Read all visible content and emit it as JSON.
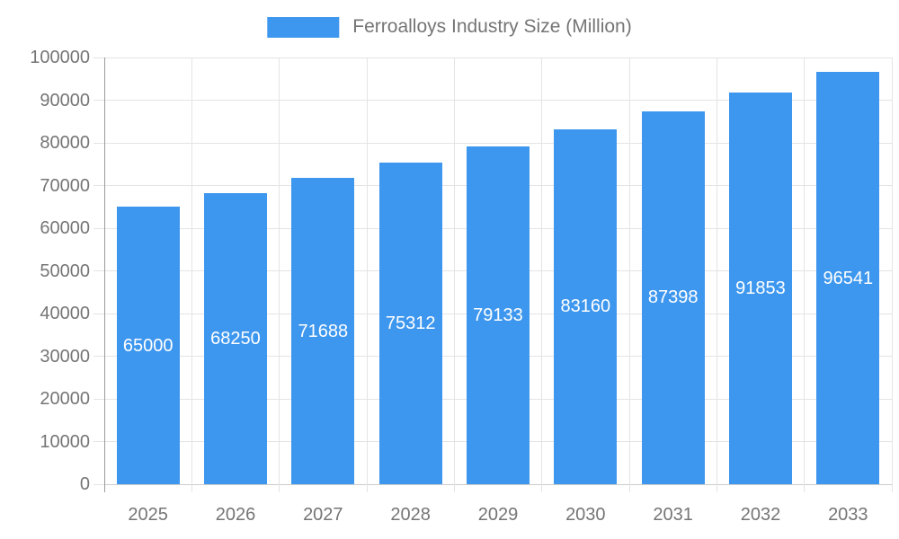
{
  "chart_data": {
    "type": "bar",
    "title": "Ferroalloys Industry Size (Million)",
    "series_name": "Ferroalloys Industry Size (Million)",
    "categories": [
      "2025",
      "2026",
      "2027",
      "2028",
      "2029",
      "2030",
      "2031",
      "2032",
      "2033"
    ],
    "values": [
      65000,
      68250,
      71688,
      75312,
      79133,
      83160,
      87398,
      91853,
      96541
    ],
    "value_labels": [
      "65000",
      "68250",
      "71688",
      "75312",
      "79133",
      "83160",
      "87398",
      "91853",
      "96541"
    ],
    "xlabel": "",
    "ylabel": "",
    "ylim": [
      0,
      100000
    ],
    "ytick_step": 10000,
    "yticks": [
      "0",
      "10000",
      "20000",
      "30000",
      "40000",
      "50000",
      "60000",
      "70000",
      "80000",
      "90000",
      "100000"
    ],
    "grid": "on",
    "legend_position": "top-center",
    "value_label_position": "inside-center"
  },
  "colors": {
    "bar": "#3e97ee",
    "gridline": "#e4e4e4",
    "baseline": "#cccccc",
    "axis_line": "#9b9b9b",
    "axis_text": "#757575",
    "value_text": "#ffffff",
    "background": "#ffffff"
  }
}
